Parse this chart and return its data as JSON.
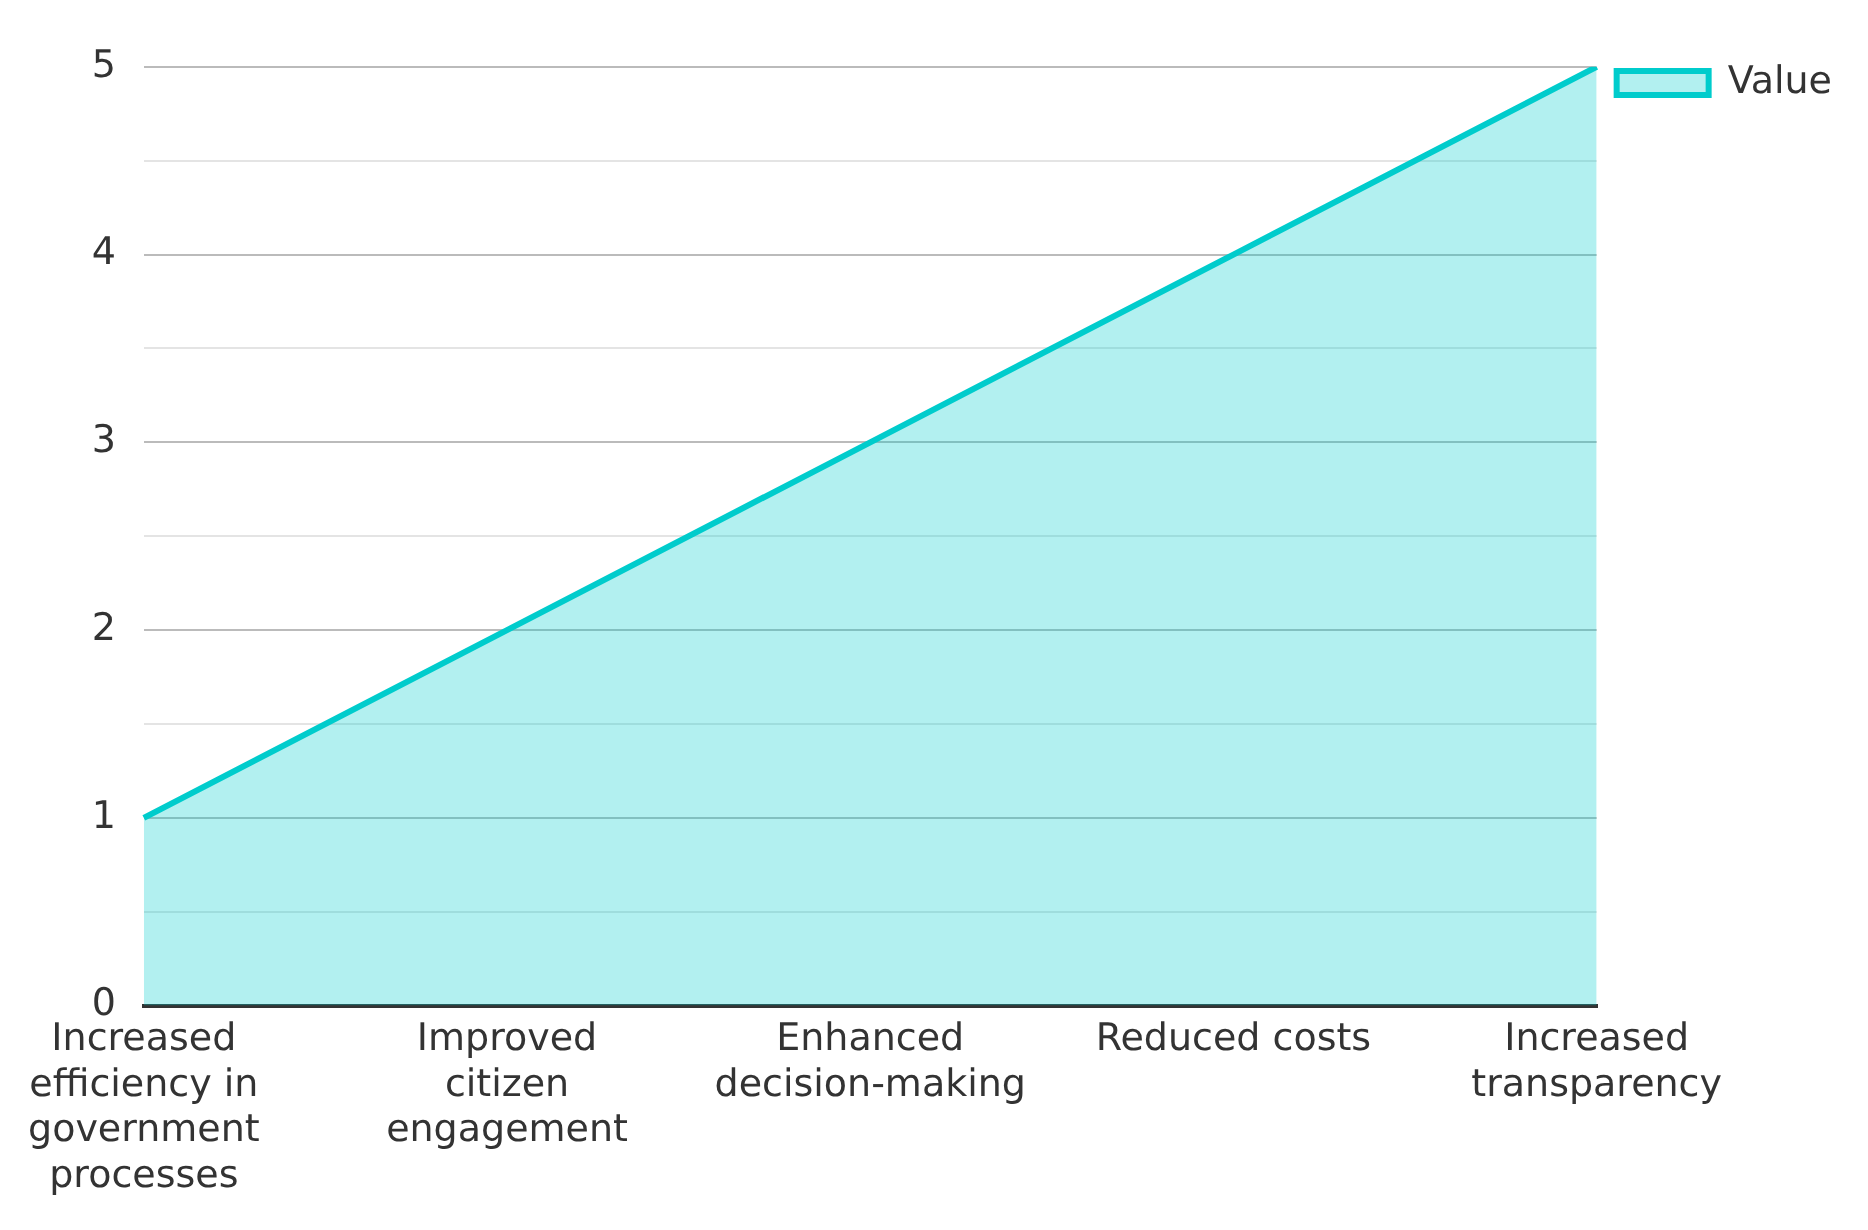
{
  "chart_data": {
    "type": "area",
    "categories": [
      "Increased efficiency in government processes",
      "Improved citizen engagement",
      "Enhanced decision-making",
      "Reduced costs",
      "Increased transparency"
    ],
    "series": [
      {
        "name": "Value",
        "color": "#00cccc",
        "values": [
          1,
          2,
          3,
          4,
          5
        ]
      }
    ],
    "ylim": [
      0,
      5
    ],
    "yticks": [
      0,
      {
        "value": 0.5,
        "label": null
      },
      1,
      {
        "value": 1.5,
        "label": null
      },
      2,
      {
        "value": 2.5,
        "label": null
      },
      3,
      {
        "value": 3.5,
        "label": null
      },
      4,
      {
        "value": 4.5,
        "label": null
      },
      5
    ],
    "grid": "y",
    "legend": "top right",
    "marker": "none"
  }
}
